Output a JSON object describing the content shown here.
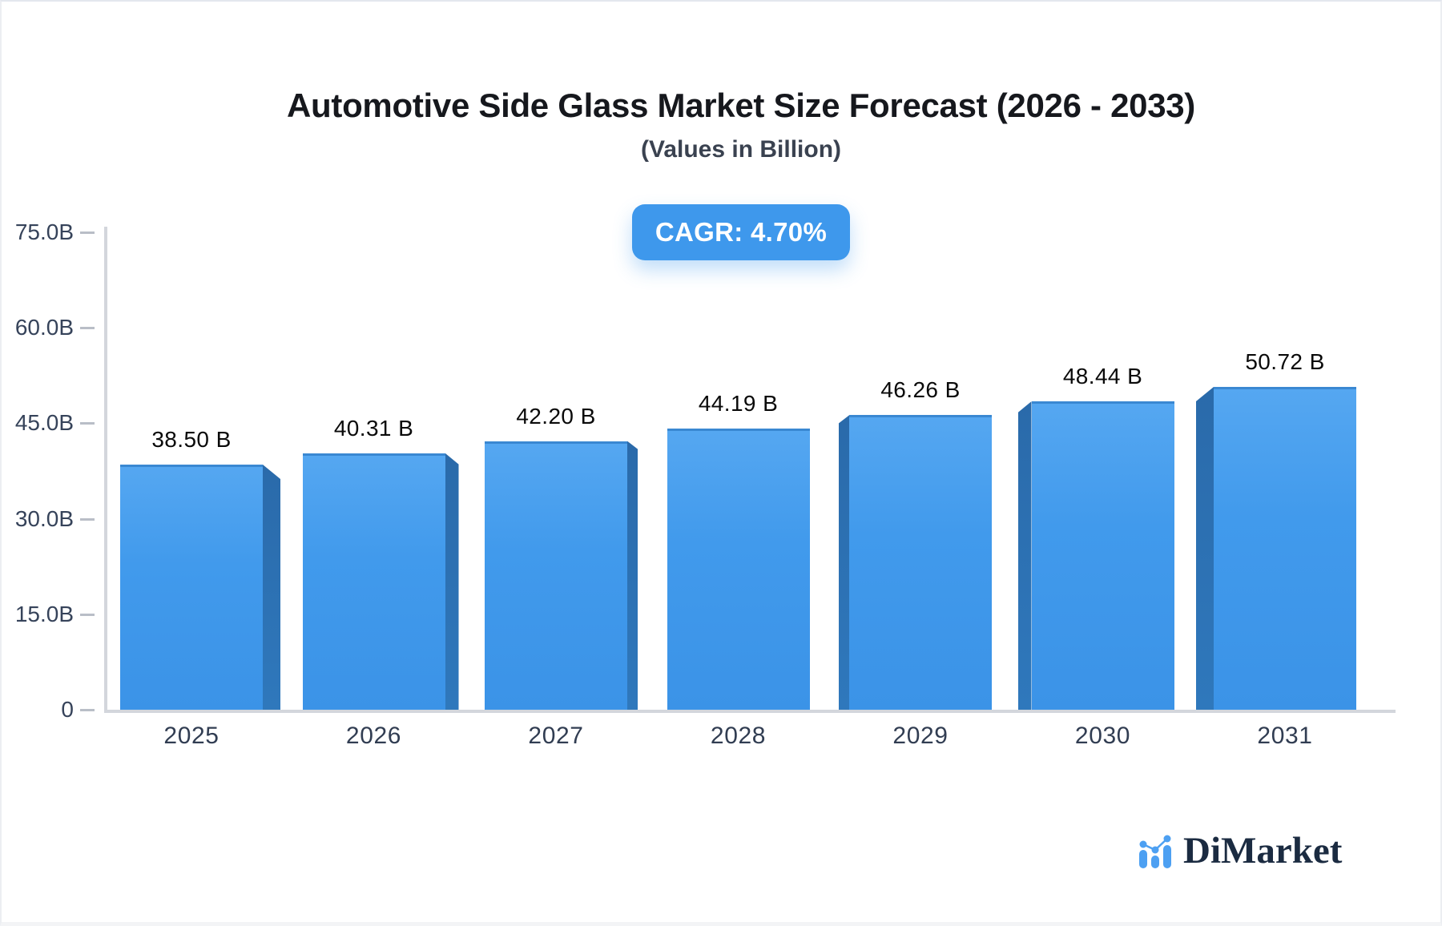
{
  "header": {
    "title": "Automotive Side Glass Market Size Forecast (2026 - 2033)",
    "subtitle": "(Values in Billion)"
  },
  "badge": {
    "label": "CAGR: 4.70%"
  },
  "chart_data": {
    "type": "bar",
    "title": "Automotive Side Glass Market Size Forecast (2026 - 2033)",
    "subtitle": "(Values in Billion)",
    "cagr_label": "CAGR: 4.70%",
    "categories": [
      "2025",
      "2026",
      "2027",
      "2028",
      "2029",
      "2030",
      "2031"
    ],
    "values": [
      38.5,
      40.31,
      42.2,
      44.19,
      46.26,
      48.44,
      50.72
    ],
    "value_labels": [
      "38.50 B",
      "40.31 B",
      "42.20 B",
      "44.19 B",
      "46.26 B",
      "48.44 B",
      "50.72 B"
    ],
    "unit": "Billion",
    "y_ticks": [
      {
        "value": 0,
        "label": "0"
      },
      {
        "value": 15,
        "label": "15.0B"
      },
      {
        "value": 30,
        "label": "30.0B"
      },
      {
        "value": 45,
        "label": "45.0B"
      },
      {
        "value": 60,
        "label": "60.0B"
      },
      {
        "value": 75,
        "label": "75.0B"
      }
    ],
    "ylim": [
      0,
      75
    ],
    "xlabel": "",
    "ylabel": "",
    "grid": false,
    "legend": false,
    "bar_style": "3d-perspective"
  },
  "logo": {
    "text": "DiMarket",
    "icon": "bar-chart-icon"
  },
  "colors": {
    "accent": "#3E98EC",
    "bar_face": "#3E97EA",
    "bar_side": "#2D73B5",
    "bar_top_edge": "#3A88D2",
    "axis_line": "#D3D6DC",
    "tick": "#B9BEC7",
    "title_text": "#16181D",
    "subtitle_text": "#3A4250",
    "axis_text": "#36435A",
    "value_text": "#0A0A0A",
    "badge_text": "#FFFFFF",
    "logo_text": "#1B2B41",
    "logo_icon": "#4DA0F2"
  }
}
